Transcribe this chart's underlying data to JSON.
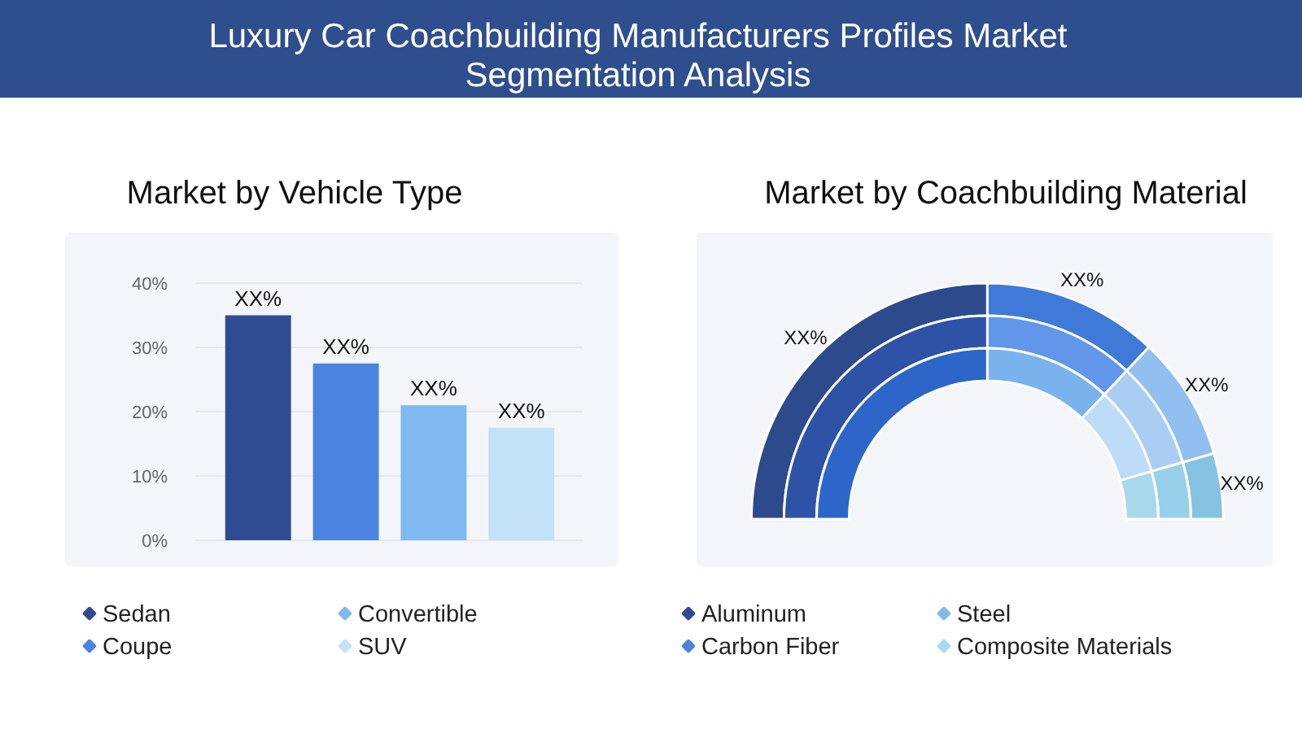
{
  "chart_data": [
    {
      "type": "bar",
      "title": "Luxury Car Coachbuilding Manufacturers Profiles Market Segmentation Analysis",
      "subtitle": "Market by Vehicle Type",
      "categories": [
        null,
        null,
        null,
        null
      ],
      "stacked": true,
      "series": [
        {
          "name": "Sedan",
          "color": "#2f4b91",
          "values": [
            35,
            null,
            null,
            null
          ],
          "value_labels": [
            "XX%",
            null,
            null,
            null
          ]
        },
        {
          "name": "Coupe",
          "color": "#4a84e0",
          "values": [
            null,
            27.5,
            null,
            null
          ],
          "value_labels": [
            null,
            "XX%",
            null,
            null
          ]
        },
        {
          "name": "Convertible",
          "color": "#80b9f0",
          "values": [
            null,
            null,
            21,
            null
          ],
          "value_labels": [
            null,
            null,
            "XX%",
            null
          ]
        },
        {
          "name": "SUV",
          "color": "#c2e2f8",
          "values": [
            null,
            null,
            null,
            17.5
          ],
          "value_labels": [
            null,
            null,
            null,
            "XX%"
          ]
        }
      ],
      "ylim": [
        0,
        40
      ],
      "yticks": [
        {
          "value": 0,
          "label": "0%"
        },
        {
          "value": 10,
          "label": "10%"
        },
        {
          "value": 20,
          "label": "20%"
        },
        {
          "value": 30,
          "label": "30%"
        },
        {
          "value": 40,
          "label": "40%"
        }
      ],
      "grid": "y",
      "tick_labels": "y",
      "legend": "bottom"
    },
    {
      "type": "donut",
      "subtitle": "Market by Coachbuilding Material",
      "categories": [
        "Aluminum",
        "Carbon Fiber",
        "Steel",
        "Composite Materials"
      ],
      "colors": [
        "#2f4b91",
        "#4a84e0",
        "#80b9f0",
        "#a8daee"
      ],
      "series": [
        {
          "values": [
            50,
            24,
            17,
            9
          ],
          "colors": [
            "#2c4a8c",
            "#3f7ad8",
            "#90bff0",
            "#86c2e2"
          ],
          "value_labels": [
            "XX%",
            "XX%",
            "XX%",
            "XX%"
          ]
        },
        {
          "values": [
            50,
            24,
            17,
            9
          ],
          "colors": [
            "#2e52a6",
            "#6296ea",
            "#a9cdf3",
            "#98cfe9"
          ]
        },
        {
          "values": [
            50,
            24,
            17,
            9
          ],
          "colors": [
            "#2d66c8",
            "#7ab2ee",
            "#bcdcf7",
            "#a8d8ec"
          ]
        }
      ],
      "legend": "bottom"
    }
  ]
}
